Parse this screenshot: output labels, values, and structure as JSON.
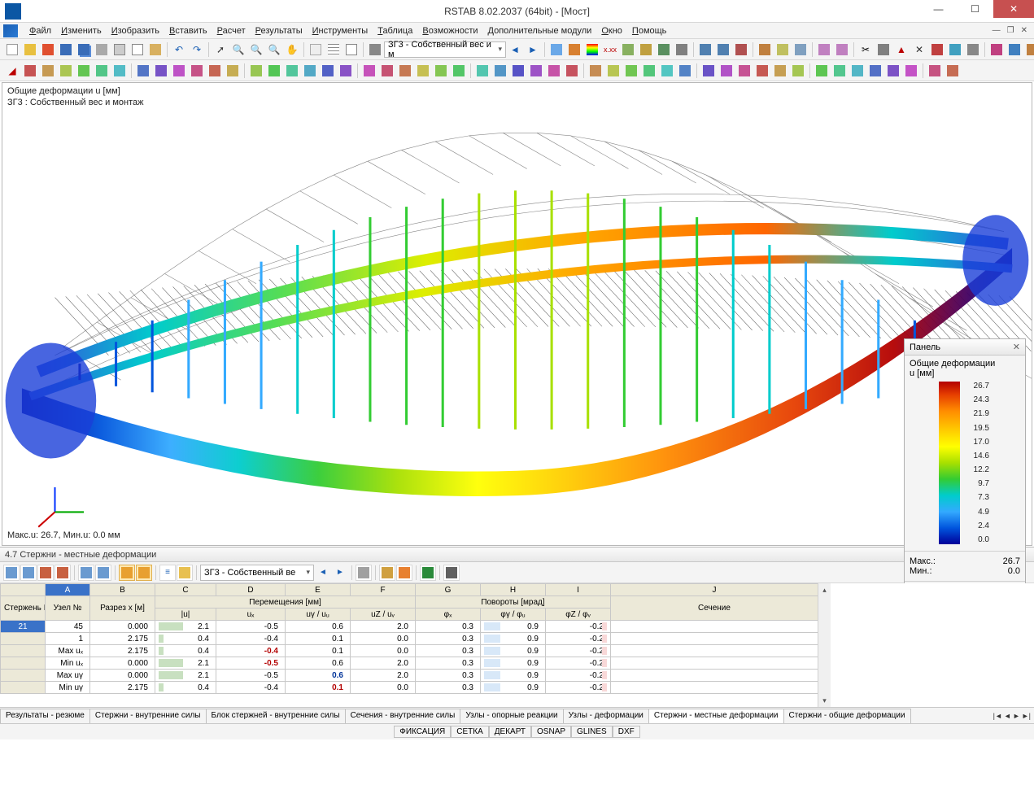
{
  "window": {
    "title": "RSTAB 8.02.2037 (64bit) - [Мост]"
  },
  "menu": [
    "Файл",
    "Изменить",
    "Изобразить",
    "Вставить",
    "Расчет",
    "Результаты",
    "Инструменты",
    "Таблица",
    "Возможности",
    "Дополнительные модули",
    "Окно",
    "Помощь"
  ],
  "loadcase_combo": "ЗГ3 - Собственный вес и м",
  "viewport": {
    "line1": "Общие деформации u [мм]",
    "line2": "ЗГ3 : Собственный вес и монтаж",
    "footer": "Макс.u: 26.7, Мин.u: 0.0 мм",
    "colors": {
      "stops": [
        "#b30000",
        "#e63e00",
        "#ff8c00",
        "#ffcc00",
        "#ffff00",
        "#a8e000",
        "#33cc33",
        "#00cccc",
        "#33aaff",
        "#0055dd",
        "#000099"
      ]
    }
  },
  "panel": {
    "title": "Панель",
    "subtitle1": "Общие деформации",
    "subtitle2": "u [мм]",
    "ticks": [
      "26.7",
      "24.3",
      "21.9",
      "19.5",
      "17.0",
      "14.6",
      "12.2",
      "9.7",
      "7.3",
      "4.9",
      "2.4",
      "0.0"
    ],
    "max_label": "Макс.:",
    "max_value": "26.7",
    "min_label": "Мин.:",
    "min_value": "0.0"
  },
  "table": {
    "title": "4.7 Стержни - местные деформации",
    "combo": "ЗГ3 - Собственный ве",
    "col_letters": [
      "A",
      "B",
      "C",
      "D",
      "E",
      "F",
      "G",
      "H",
      "I",
      "J"
    ],
    "group_headers": {
      "stержень": "Стержень №",
      "uzel": "Узел №",
      "razrez": "Разрез x [м]",
      "perem": "Перемещения [мм]",
      "povorot": "Повороты [мрад]",
      "sechenie": "Сечение"
    },
    "sub_headers": [
      "|u|",
      "uₓ",
      "uγ / uᵤ",
      "uZ / uᵥ",
      "φₓ",
      "φγ / φᵤ",
      "φZ / φᵥ"
    ],
    "rows": [
      {
        "id": "21",
        "uzel": "45",
        "x": "0.000",
        "u": "2.1",
        "ux": "-0.5",
        "uy": "0.6",
        "uz": "2.0",
        "fx": "0.3",
        "fy": "0.9",
        "fz": "-0.2"
      },
      {
        "id": "",
        "uzel": "1",
        "x": "2.175",
        "u": "0.4",
        "ux": "-0.4",
        "uy": "0.1",
        "uz": "0.0",
        "fx": "0.3",
        "fy": "0.9",
        "fz": "-0.2"
      },
      {
        "id": "",
        "uzel": "Max uₓ",
        "x": "2.175",
        "u": "0.4",
        "ux": "-0.4",
        "uy": "0.1",
        "uz": "0.0",
        "fx": "0.3",
        "fy": "0.9",
        "fz": "-0.2",
        "hl": "ux",
        "cls": "red"
      },
      {
        "id": "",
        "uzel": "Min uₓ",
        "x": "0.000",
        "u": "2.1",
        "ux": "-0.5",
        "uy": "0.6",
        "uz": "2.0",
        "fx": "0.3",
        "fy": "0.9",
        "fz": "-0.2",
        "hl": "ux",
        "cls": "red"
      },
      {
        "id": "",
        "uzel": "Max uγ",
        "x": "0.000",
        "u": "2.1",
        "ux": "-0.5",
        "uy": "0.6",
        "uz": "2.0",
        "fx": "0.3",
        "fy": "0.9",
        "fz": "-0.2",
        "hl": "uy",
        "cls": "blue"
      },
      {
        "id": "",
        "uzel": "Min uγ",
        "x": "2.175",
        "u": "0.4",
        "ux": "-0.4",
        "uy": "0.1",
        "uz": "0.0",
        "fx": "0.3",
        "fy": "0.9",
        "fz": "-0.2",
        "hl": "uy",
        "cls": "red"
      }
    ],
    "tabs": [
      "Результаты - резюме",
      "Стержни - внутренние силы",
      "Блок стержней - внутренние силы",
      "Сечения - внутренние силы",
      "Узлы - опорные реакции",
      "Узлы - деформации",
      "Стержни - местные деформации",
      "Стержни - общие деформации"
    ],
    "active_tab": 6
  },
  "statusbar": [
    "ФИКСАЦИЯ",
    "СЕТКА",
    "ДЕКАРТ",
    "OSNAP",
    "GLINES",
    "DXF"
  ]
}
